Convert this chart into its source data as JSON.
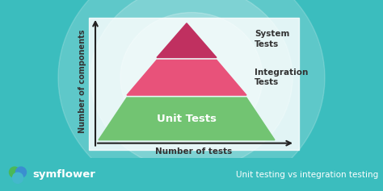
{
  "bg_color": "#3bbdbe",
  "ellipse_colors": [
    "#52c8c8",
    "#5ecece",
    "#6ad4d4"
  ],
  "white_wedge_color": "#e8f5f5",
  "footer_bg": "#2d3a4a",
  "footer_text_color": "#ffffff",
  "footer_brand": "symflower",
  "footer_title": "Unit testing vs integration testing",
  "ylabel": "Number of components",
  "xlabel": "Number of tests",
  "unit_color": "#72c472",
  "unit_label": "Unit Tests",
  "unit_label_color": "#ffffff",
  "integration_color": "#e8527a",
  "integration_label": "Integration\nTests",
  "system_color": "#c03060",
  "system_label": "System\nTests",
  "label_color": "#333333",
  "arrow_color": "#222222",
  "logo_colors": [
    "#4ab858",
    "#3a8fd0",
    "#44b8cc"
  ]
}
